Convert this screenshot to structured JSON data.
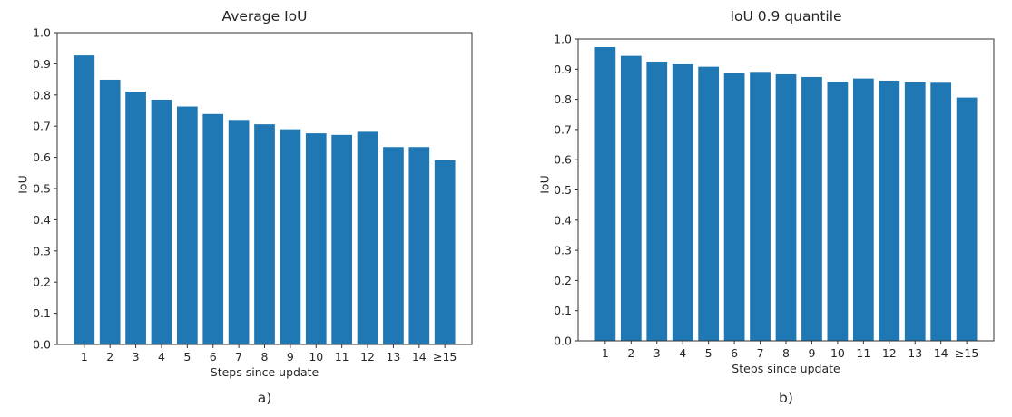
{
  "chart_data": [
    {
      "type": "bar",
      "title": "Average IoU",
      "xlabel": "Steps since update",
      "ylabel": "IoU",
      "caption": "a)",
      "categories": [
        "1",
        "2",
        "3",
        "4",
        "5",
        "6",
        "7",
        "8",
        "9",
        "10",
        "11",
        "12",
        "13",
        "14",
        "≥15"
      ],
      "values": [
        0.927,
        0.849,
        0.811,
        0.785,
        0.763,
        0.739,
        0.72,
        0.706,
        0.69,
        0.677,
        0.672,
        0.682,
        0.633,
        0.633,
        0.591
      ],
      "ylim": [
        0.0,
        1.0
      ],
      "ytick_labels": [
        "0.0",
        "0.1",
        "0.2",
        "0.3",
        "0.4",
        "0.5",
        "0.6",
        "0.7",
        "0.8",
        "0.9",
        "1.0"
      ],
      "grid": "off",
      "legend": "none",
      "bar_color": "#1f77b4"
    },
    {
      "type": "bar",
      "title": "IoU 0.9 quantile",
      "xlabel": "Steps since update",
      "ylabel": "IoU",
      "caption": "b)",
      "categories": [
        "1",
        "2",
        "3",
        "4",
        "5",
        "6",
        "7",
        "8",
        "9",
        "10",
        "11",
        "12",
        "13",
        "14",
        "≥15"
      ],
      "values": [
        0.973,
        0.944,
        0.925,
        0.916,
        0.908,
        0.888,
        0.891,
        0.883,
        0.874,
        0.858,
        0.869,
        0.862,
        0.856,
        0.855,
        0.806
      ],
      "ylim": [
        0.0,
        1.0
      ],
      "ytick_labels": [
        "0.0",
        "0.1",
        "0.2",
        "0.3",
        "0.4",
        "0.5",
        "0.6",
        "0.7",
        "0.8",
        "0.9",
        "1.0"
      ],
      "grid": "off",
      "legend": "none",
      "bar_color": "#1f77b4"
    }
  ],
  "style": {
    "spine_color": "#333333",
    "text_color": "#262626",
    "background": "#ffffff"
  }
}
